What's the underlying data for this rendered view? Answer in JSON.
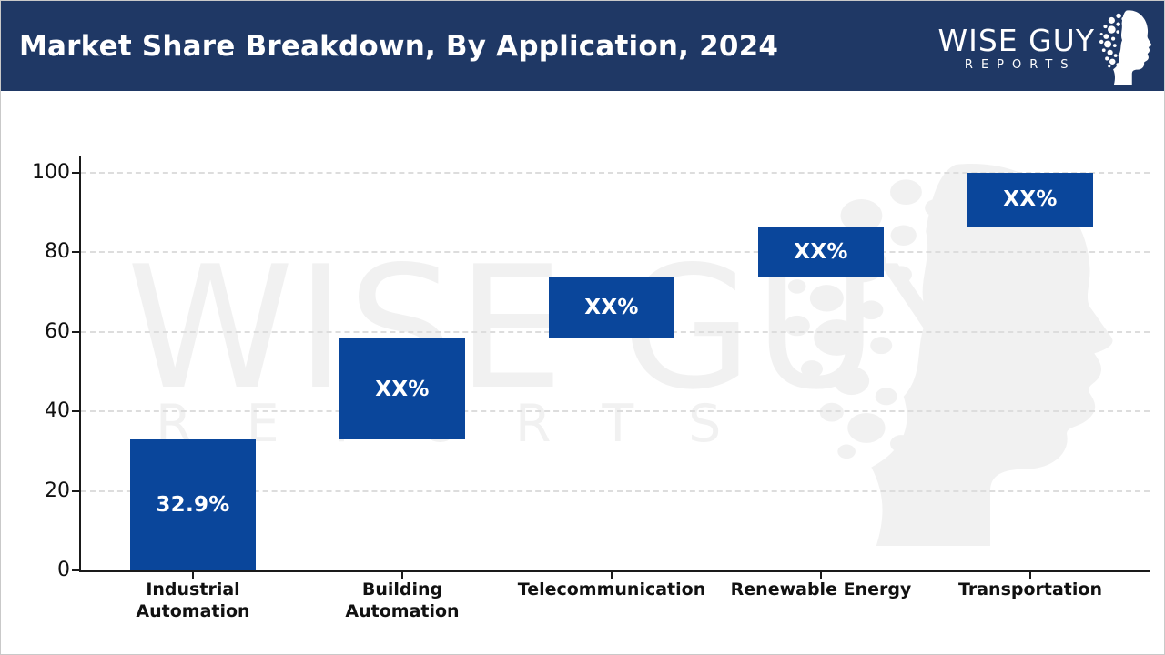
{
  "header": {
    "title": "Market Share Breakdown, By Application, 2024",
    "bg_color": "#1f3865",
    "logo": {
      "line1": "WISE GUY",
      "line2": "REPORTS"
    }
  },
  "watermark": {
    "line1": "WISE GUY",
    "line2": "REPORTS"
  },
  "chart_data": {
    "type": "bar",
    "subtype": "waterfall",
    "title": "Market Share Breakdown, By Application, 2024",
    "categories": [
      "Industrial\nAutomation",
      "Building\nAutomation",
      "Telecommunication",
      "Renewable Energy",
      "Transportation"
    ],
    "segments": [
      {
        "category": "Industrial Automation",
        "start": 0,
        "end": 32.9,
        "label": "32.9%"
      },
      {
        "category": "Building Automation",
        "start": 32.9,
        "end": 58.3,
        "label": "XX%"
      },
      {
        "category": "Telecommunication",
        "start": 58.3,
        "end": 73.7,
        "label": "XX%"
      },
      {
        "category": "Renewable Energy",
        "start": 73.7,
        "end": 86.5,
        "label": "XX%"
      },
      {
        "category": "Transportation",
        "start": 86.5,
        "end": 100,
        "label": "XX%"
      }
    ],
    "yticks": [
      0,
      20,
      40,
      60,
      80,
      100
    ],
    "ylim": [
      0,
      104.3
    ],
    "xlabel": "",
    "ylabel": "",
    "grid": "dashed-horizontal",
    "legend_position": "none",
    "bar_color": "#0a469b",
    "bar_label_color": "#ffffff",
    "axis_color": "#1a1a1a",
    "gridline_color": "#dddddd"
  }
}
